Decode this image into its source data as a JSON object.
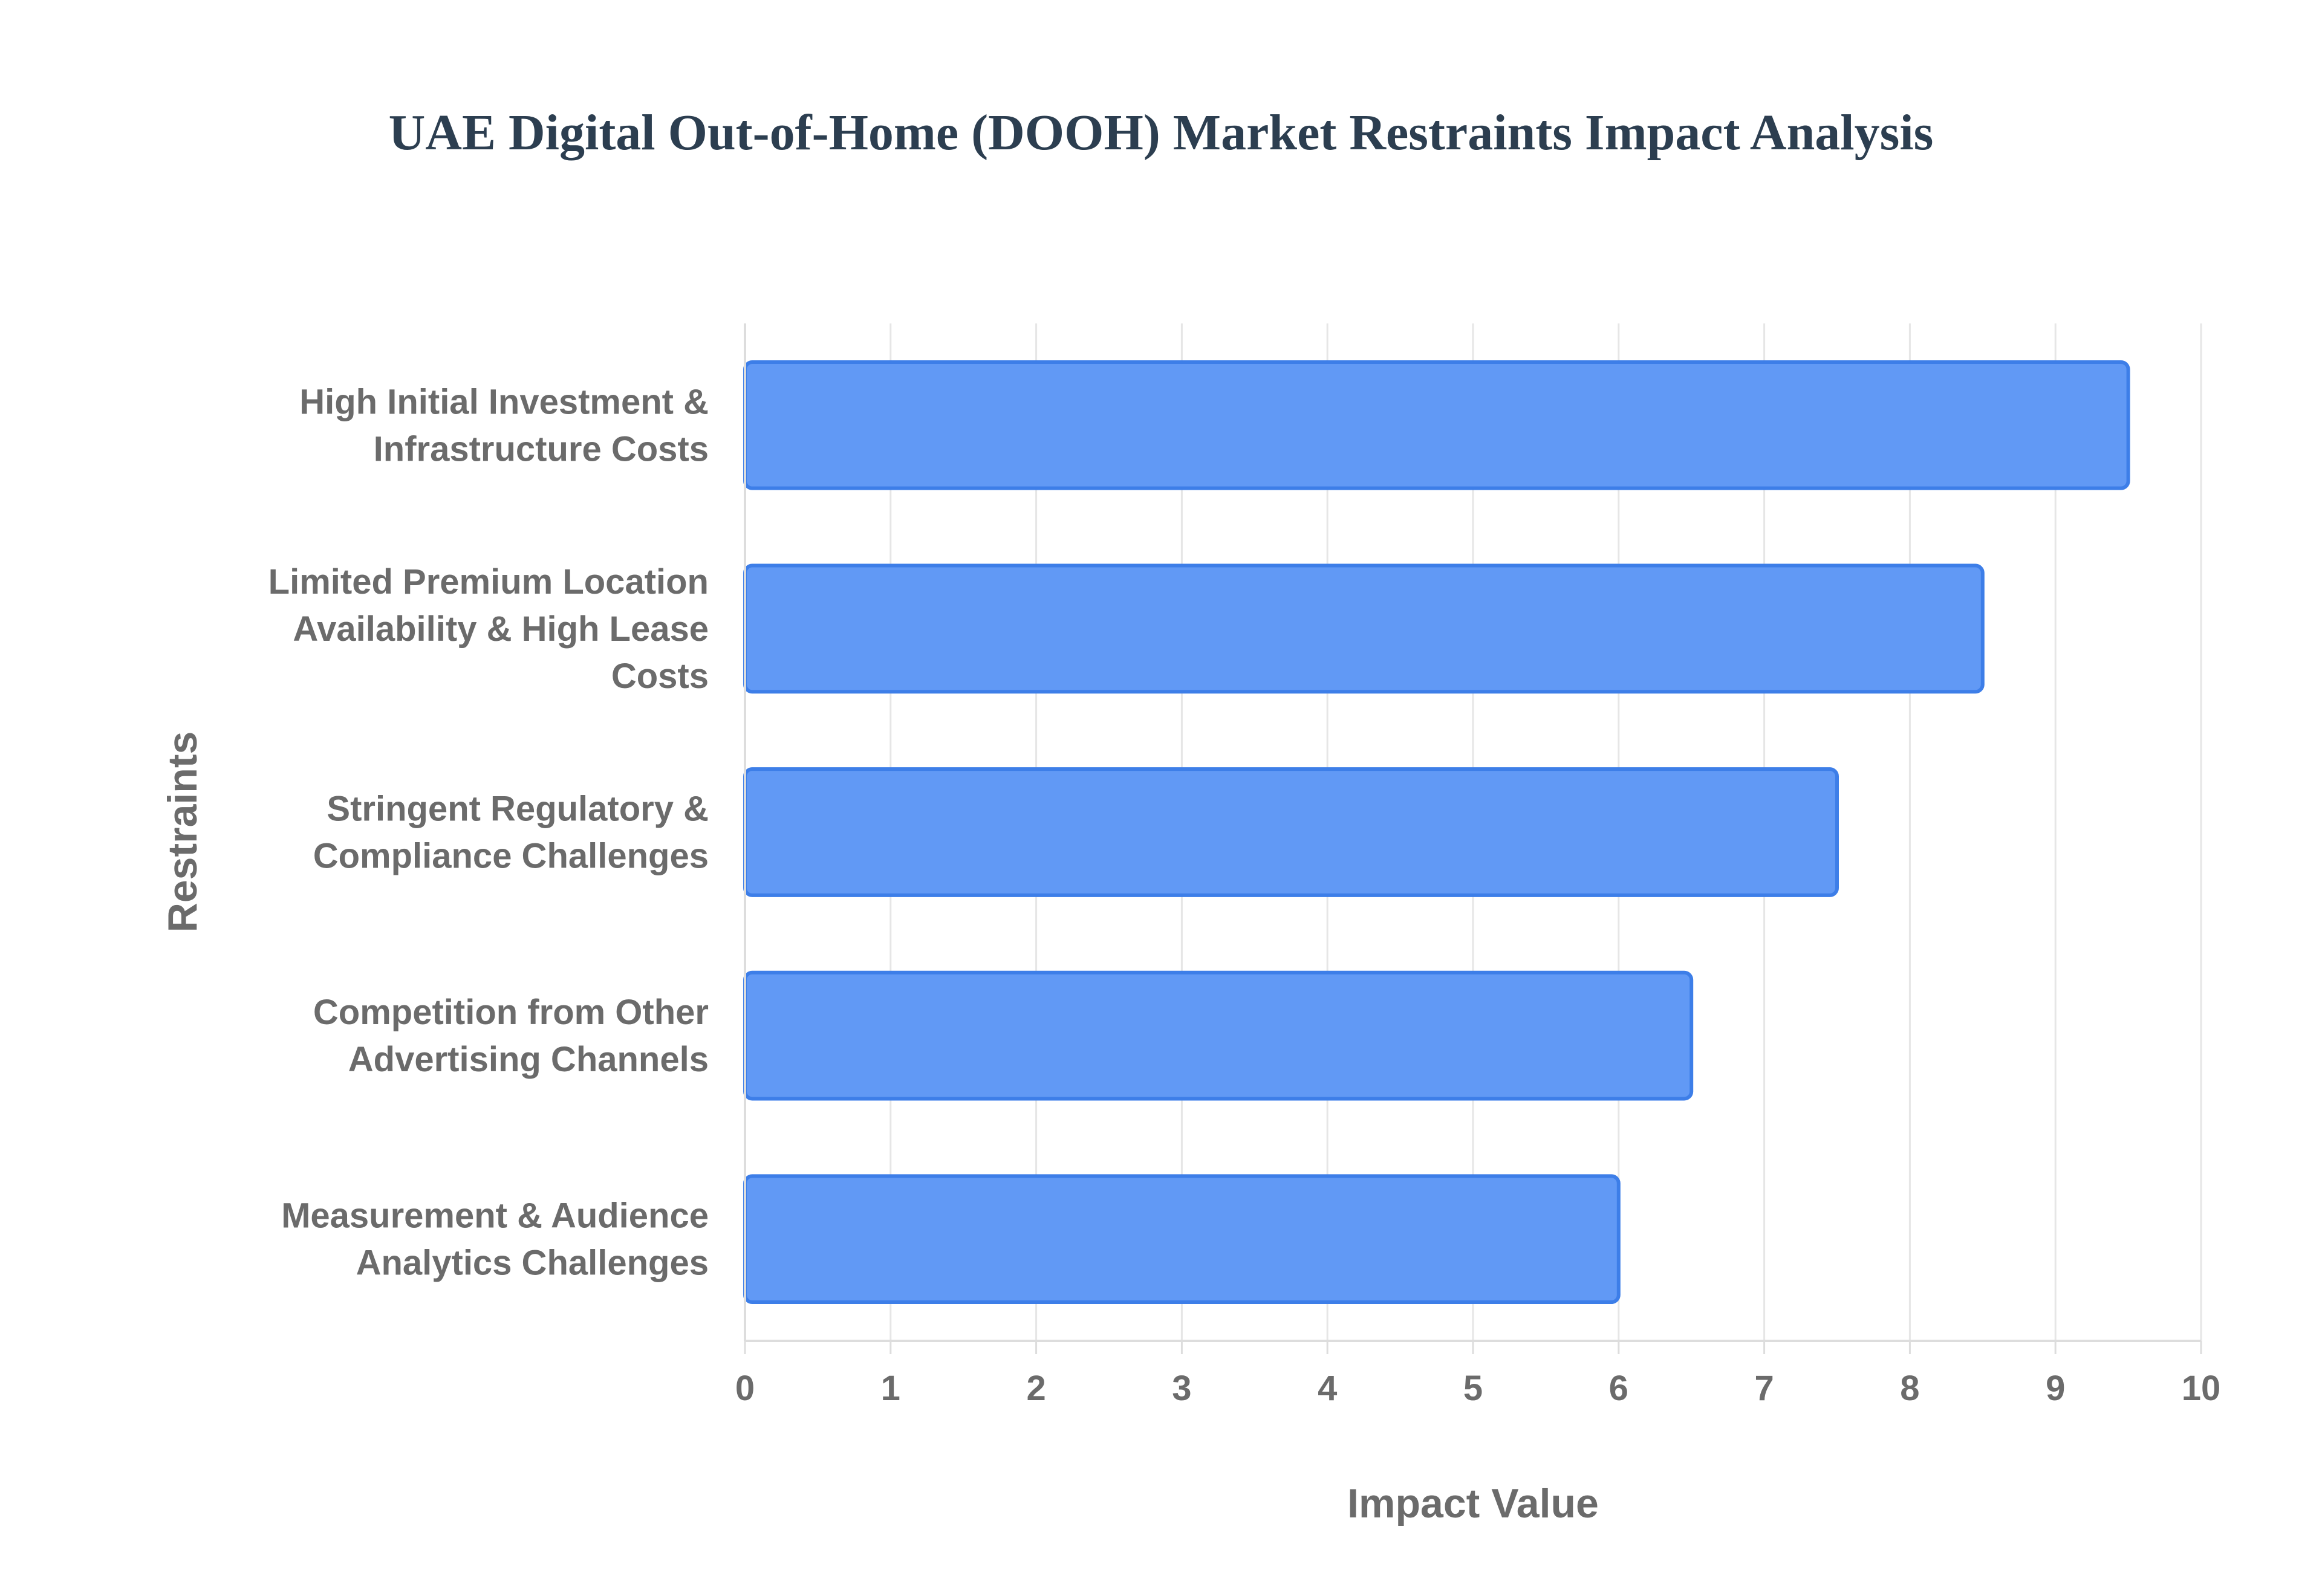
{
  "chart_data": {
    "type": "bar",
    "orientation": "horizontal",
    "title": "UAE Digital Out-of-Home (DOOH) Market Restraints Impact Analysis",
    "xlabel": "Impact Value",
    "ylabel": "Restraints",
    "xlim": [
      0,
      10
    ],
    "x_ticks": [
      "0",
      "1",
      "2",
      "3",
      "4",
      "5",
      "6",
      "7",
      "8",
      "9",
      "10"
    ],
    "grid": true,
    "legend": "none",
    "colors": {
      "bar_fill": "#6199f5",
      "bar_stroke": "#3d7ee8",
      "grid": "#e6e6e6",
      "axis": "#dddddd",
      "text": "#6b6b6b",
      "title": "#2c3e50"
    },
    "categories": [
      [
        "High Initial Investment &",
        "Infrastructure Costs"
      ],
      [
        "Limited Premium Location",
        "Availability & High Lease",
        "Costs"
      ],
      [
        "Stringent Regulatory &",
        "Compliance Challenges"
      ],
      [
        "Competition from Other",
        "Advertising Channels"
      ],
      [
        "Measurement & Audience",
        "Analytics Challenges"
      ]
    ],
    "values": [
      9.5,
      8.5,
      7.5,
      6.5,
      6
    ]
  }
}
